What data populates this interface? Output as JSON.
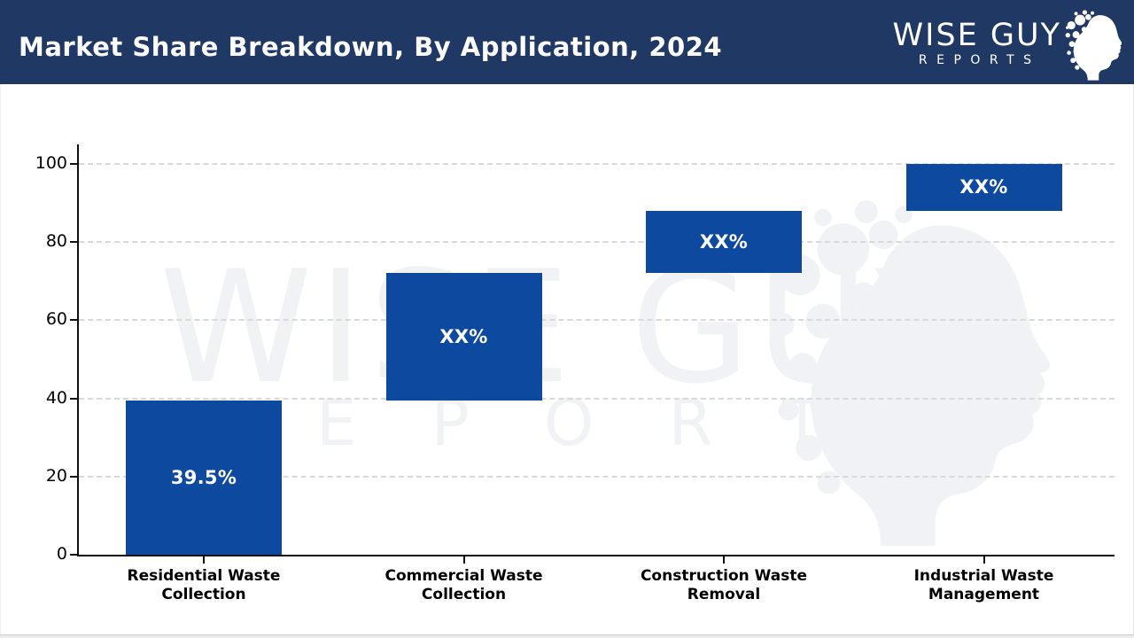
{
  "header": {
    "title": "Market Share Breakdown, By Application, 2024",
    "logo": {
      "line1": "WISE GUY",
      "line2": "REPORTS"
    }
  },
  "watermark": {
    "line1": "WISE GUY",
    "line2": "REPORTS"
  },
  "chart_data": {
    "type": "bar",
    "subtype": "waterfall",
    "title": "Market Share Breakdown, By Application, 2024",
    "categories": [
      "Residential Waste Collection",
      "Commercial Waste Collection",
      "Construction Waste Removal",
      "Industrial Waste Management"
    ],
    "segments": [
      {
        "start": 0,
        "end": 39.5,
        "label": "39.5%"
      },
      {
        "start": 39.5,
        "end": 72,
        "label": "XX%"
      },
      {
        "start": 72,
        "end": 88,
        "label": "XX%"
      },
      {
        "start": 88,
        "end": 100,
        "label": "XX%"
      }
    ],
    "xlabel": "",
    "ylabel": "",
    "ylim": [
      0,
      100
    ],
    "yticks": [
      0,
      20,
      40,
      60,
      80,
      100
    ],
    "grid": "dashed-horizontal",
    "legend": "none",
    "bar_color": "#0d4a9f"
  },
  "colors": {
    "header_bg": "#1f3864",
    "bar": "#0d4a9f",
    "gridline": "#d9d9d9",
    "axis": "#111111",
    "watermark": "#f1f2f5",
    "background": "#ffffff"
  }
}
